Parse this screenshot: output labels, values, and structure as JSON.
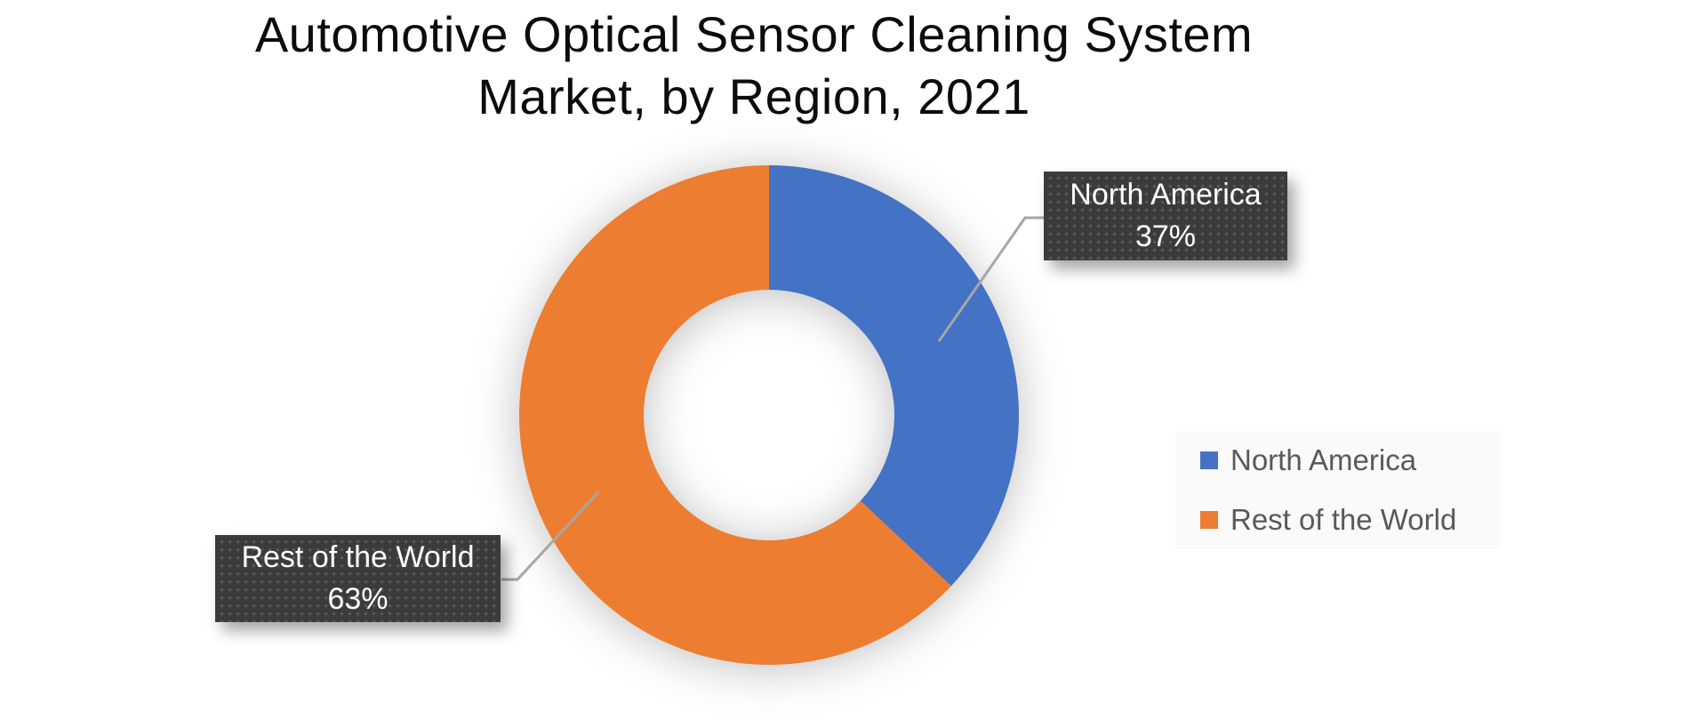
{
  "chart_data": {
    "type": "pie",
    "subtype": "donut",
    "title": "Automotive Optical Sensor Cleaning System Market, by Region, 2021",
    "categories": [
      "North America",
      "Rest of the World"
    ],
    "values": [
      37,
      63
    ],
    "unit": "%",
    "colors": [
      "#4472C4",
      "#ED7D31"
    ],
    "start_angle_deg": 0,
    "direction": "clockwise",
    "inner_radius_ratio": 0.5,
    "legend_position": "right",
    "data_labels": [
      "North America 37%",
      "Rest of the World 63%"
    ]
  },
  "title": {
    "text": "Automotive Optical Sensor Cleaning System\nMarket, by Region, 2021"
  },
  "callouts": [
    {
      "line1": "North America",
      "line2": "37%"
    },
    {
      "line1": "Rest of the World",
      "line2": "63%"
    }
  ],
  "legend": {
    "items": [
      {
        "label": "North America",
        "color": "#4472C4"
      },
      {
        "label": "Rest of the World",
        "color": "#ED7D31"
      }
    ]
  },
  "style": {
    "slice_north_america": "#4472C4",
    "slice_rest_of_world": "#ED7D31",
    "callout_bg": "#3B3B3B",
    "callout_text": "#FFFFFF",
    "leader_line": "#A6A6A6",
    "legend_text": "#595959",
    "legend_bg": "#FAFAFA",
    "title_color": "#0C0C0C",
    "background": "#FFFFFF"
  }
}
